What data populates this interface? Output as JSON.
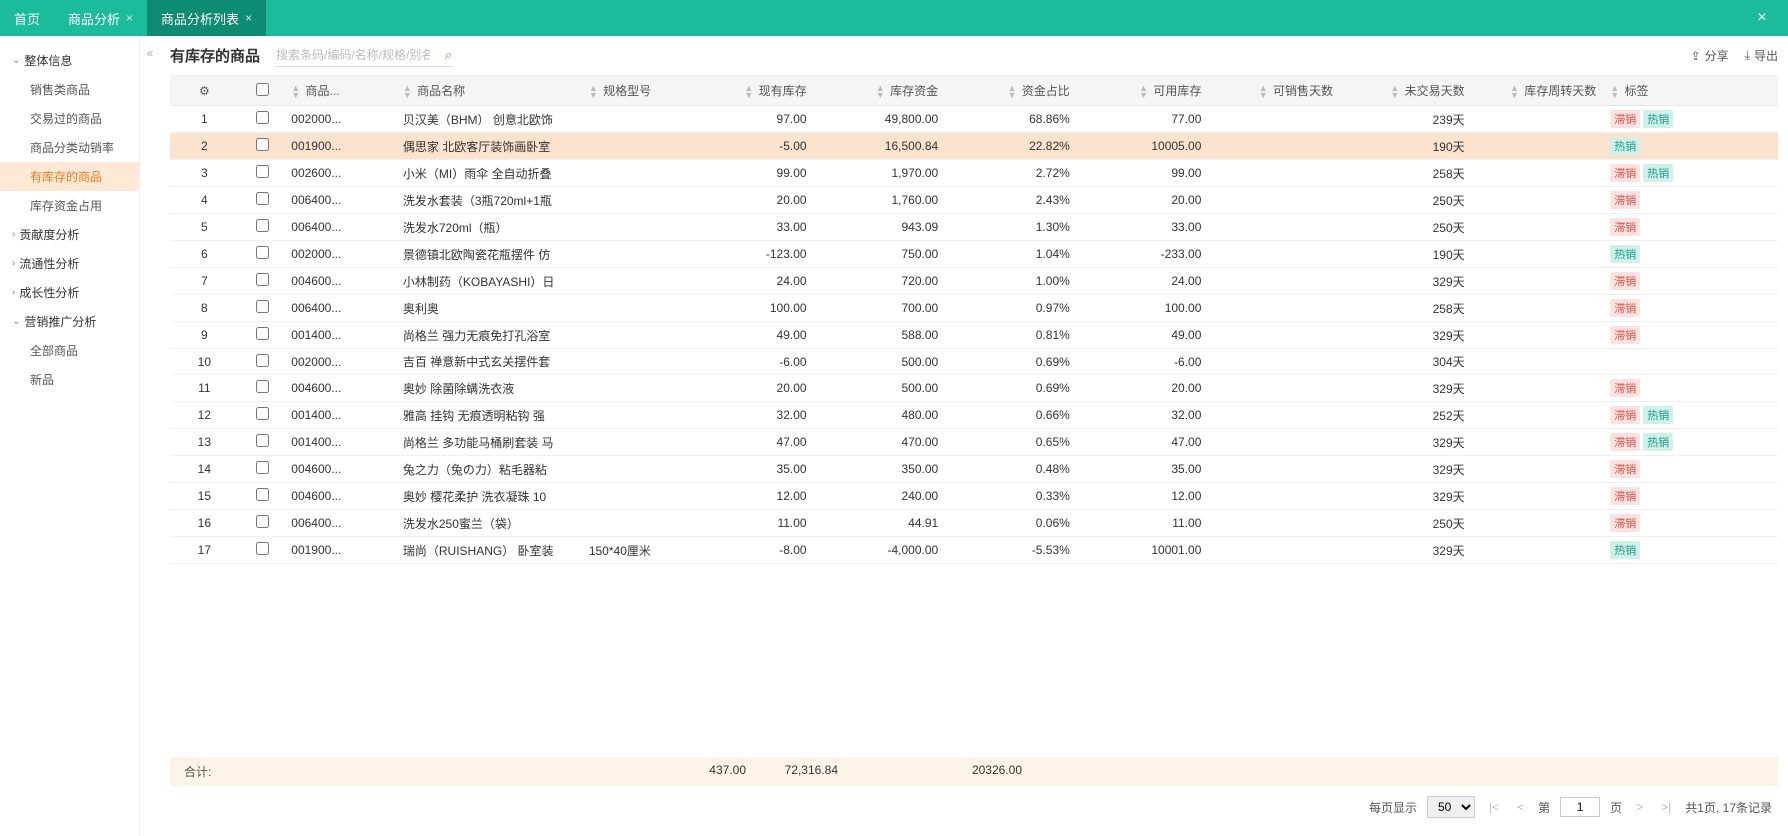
{
  "colors": {
    "primary": "#1abc9c",
    "primary_dark": "#0e8b73",
    "accent": "#e67e22",
    "row_highlight": "#fbe3cd",
    "sidebar_active_bg": "#ffe8d6",
    "footer_bg": "#fdf3e6",
    "tag_red_bg": "#fde2e2",
    "tag_red_fg": "#e74c3c",
    "tag_teal_bg": "#d1f0ea",
    "tag_teal_fg": "#16a085"
  },
  "topbar": {
    "tabs": [
      {
        "label": "首页",
        "closable": false,
        "active": false
      },
      {
        "label": "商品分析",
        "closable": true,
        "active": false
      },
      {
        "label": "商品分析列表",
        "closable": true,
        "active": true
      }
    ]
  },
  "sidebar": {
    "groups": [
      {
        "label": "整体信息",
        "expanded": true,
        "items": [
          {
            "label": "销售类商品",
            "active": false
          },
          {
            "label": "交易过的商品",
            "active": false
          },
          {
            "label": "商品分类动销率",
            "active": false
          },
          {
            "label": "有库存的商品",
            "active": true
          },
          {
            "label": "库存资金占用",
            "active": false
          }
        ]
      },
      {
        "label": "贡献度分析",
        "expanded": false,
        "items": []
      },
      {
        "label": "流通性分析",
        "expanded": false,
        "items": []
      },
      {
        "label": "成长性分析",
        "expanded": false,
        "items": []
      },
      {
        "label": "营销推广分析",
        "expanded": true,
        "items": [
          {
            "label": "全部商品",
            "active": false
          },
          {
            "label": "新品",
            "active": false
          }
        ]
      }
    ]
  },
  "page": {
    "title": "有库存的商品",
    "search_placeholder": "搜索条码/编码/名称/规格/别名",
    "share_label": "分享",
    "export_label": "导出"
  },
  "table": {
    "columns": [
      "商品...",
      "商品名称",
      "规格型号",
      "现有库存",
      "库存资金",
      "资金占比",
      "可用库存",
      "可销售天数",
      "未交易天数",
      "库存周转天数",
      "标签"
    ],
    "rows": [
      {
        "idx": 1,
        "code": "002000...",
        "name": "贝汉美（BHM） 创意北欧饰",
        "spec": "",
        "stock": "97.00",
        "fund": "49,800.00",
        "pct": "68.86%",
        "avail": "77.00",
        "saleDays": "",
        "noTrade": "239天",
        "turn": "",
        "tags": [
          "滞销",
          "热销"
        ],
        "hl": false
      },
      {
        "idx": 2,
        "code": "001900...",
        "name": "偶思家 北欧客厅装饰画卧室",
        "spec": "",
        "stock": "-5.00",
        "fund": "16,500.84",
        "pct": "22.82%",
        "avail": "10005.00",
        "saleDays": "",
        "noTrade": "190天",
        "turn": "",
        "tags": [
          "热销"
        ],
        "hl": true
      },
      {
        "idx": 3,
        "code": "002600...",
        "name": "小米（MI）雨伞 全自动折叠",
        "spec": "",
        "stock": "99.00",
        "fund": "1,970.00",
        "pct": "2.72%",
        "avail": "99.00",
        "saleDays": "",
        "noTrade": "258天",
        "turn": "",
        "tags": [
          "滞销",
          "热销"
        ],
        "hl": false
      },
      {
        "idx": 4,
        "code": "006400...",
        "name": "洗发水套装（3瓶720ml+1瓶",
        "spec": "",
        "stock": "20.00",
        "fund": "1,760.00",
        "pct": "2.43%",
        "avail": "20.00",
        "saleDays": "",
        "noTrade": "250天",
        "turn": "",
        "tags": [
          "滞销"
        ],
        "hl": false
      },
      {
        "idx": 5,
        "code": "006400...",
        "name": "洗发水720ml（瓶）",
        "spec": "",
        "stock": "33.00",
        "fund": "943.09",
        "pct": "1.30%",
        "avail": "33.00",
        "saleDays": "",
        "noTrade": "250天",
        "turn": "",
        "tags": [
          "滞销"
        ],
        "hl": false
      },
      {
        "idx": 6,
        "code": "002000...",
        "name": "景德镇北欧陶瓷花瓶摆件 仿",
        "spec": "",
        "stock": "-123.00",
        "fund": "750.00",
        "pct": "1.04%",
        "avail": "-233.00",
        "saleDays": "",
        "noTrade": "190天",
        "turn": "",
        "tags": [
          "热销"
        ],
        "hl": false
      },
      {
        "idx": 7,
        "code": "004600...",
        "name": "小林制药（KOBAYASHI）日",
        "spec": "",
        "stock": "24.00",
        "fund": "720.00",
        "pct": "1.00%",
        "avail": "24.00",
        "saleDays": "",
        "noTrade": "329天",
        "turn": "",
        "tags": [
          "滞销"
        ],
        "hl": false
      },
      {
        "idx": 8,
        "code": "006400...",
        "name": "奥利奥",
        "spec": "",
        "stock": "100.00",
        "fund": "700.00",
        "pct": "0.97%",
        "avail": "100.00",
        "saleDays": "",
        "noTrade": "258天",
        "turn": "",
        "tags": [
          "滞销"
        ],
        "hl": false
      },
      {
        "idx": 9,
        "code": "001400...",
        "name": "尚格兰 强力无痕免打孔浴室",
        "spec": "",
        "stock": "49.00",
        "fund": "588.00",
        "pct": "0.81%",
        "avail": "49.00",
        "saleDays": "",
        "noTrade": "329天",
        "turn": "",
        "tags": [
          "滞销"
        ],
        "hl": false
      },
      {
        "idx": 10,
        "code": "002000...",
        "name": "吉百 禅意新中式玄关摆件套",
        "spec": "",
        "stock": "-6.00",
        "fund": "500.00",
        "pct": "0.69%",
        "avail": "-6.00",
        "saleDays": "",
        "noTrade": "304天",
        "turn": "",
        "tags": [],
        "hl": false
      },
      {
        "idx": 11,
        "code": "004600...",
        "name": "奥妙 除菌除螨洗衣液",
        "spec": "",
        "stock": "20.00",
        "fund": "500.00",
        "pct": "0.69%",
        "avail": "20.00",
        "saleDays": "",
        "noTrade": "329天",
        "turn": "",
        "tags": [
          "滞销"
        ],
        "hl": false
      },
      {
        "idx": 12,
        "code": "001400...",
        "name": "雅高 挂钩 无痕透明粘钩 强",
        "spec": "",
        "stock": "32.00",
        "fund": "480.00",
        "pct": "0.66%",
        "avail": "32.00",
        "saleDays": "",
        "noTrade": "252天",
        "turn": "",
        "tags": [
          "滞销",
          "热销"
        ],
        "hl": false
      },
      {
        "idx": 13,
        "code": "001400...",
        "name": "尚格兰 多功能马桶刷套装 马",
        "spec": "",
        "stock": "47.00",
        "fund": "470.00",
        "pct": "0.65%",
        "avail": "47.00",
        "saleDays": "",
        "noTrade": "329天",
        "turn": "",
        "tags": [
          "滞销",
          "热销"
        ],
        "hl": false
      },
      {
        "idx": 14,
        "code": "004600...",
        "name": "兔之力（兔の力）粘毛器粘",
        "spec": "",
        "stock": "35.00",
        "fund": "350.00",
        "pct": "0.48%",
        "avail": "35.00",
        "saleDays": "",
        "noTrade": "329天",
        "turn": "",
        "tags": [
          "滞销"
        ],
        "hl": false
      },
      {
        "idx": 15,
        "code": "004600...",
        "name": "奥妙 樱花柔护 洗衣凝珠 10",
        "spec": "",
        "stock": "12.00",
        "fund": "240.00",
        "pct": "0.33%",
        "avail": "12.00",
        "saleDays": "",
        "noTrade": "329天",
        "turn": "",
        "tags": [
          "滞销"
        ],
        "hl": false
      },
      {
        "idx": 16,
        "code": "006400...",
        "name": "洗发水250蜜兰（袋）",
        "spec": "",
        "stock": "11.00",
        "fund": "44.91",
        "pct": "0.06%",
        "avail": "11.00",
        "saleDays": "",
        "noTrade": "250天",
        "turn": "",
        "tags": [
          "滞销"
        ],
        "hl": false
      },
      {
        "idx": 17,
        "code": "001900...",
        "name": "瑞尚（RUISHANG） 卧室装",
        "spec": "150*40厘米",
        "stock": "-8.00",
        "fund": "-4,000.00",
        "pct": "-5.53%",
        "avail": "10001.00",
        "saleDays": "",
        "noTrade": "329天",
        "turn": "",
        "tags": [
          "热销"
        ],
        "hl": false
      }
    ],
    "totals": {
      "label": "合计:",
      "stock": "437.00",
      "fund": "72,316.84",
      "avail": "20326.00"
    }
  },
  "pager": {
    "per_page_label": "每页显示",
    "per_page_value": "50",
    "page_prefix": "第",
    "page_value": "1",
    "page_suffix": "页",
    "summary": "共1页, 17条记录"
  }
}
